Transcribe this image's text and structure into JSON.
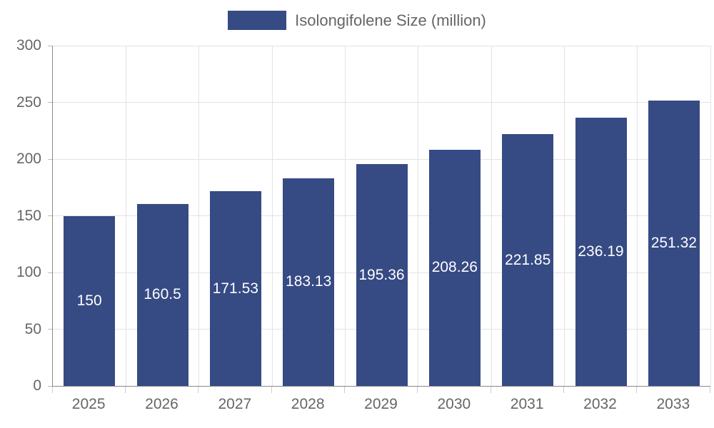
{
  "chart_data": {
    "type": "bar",
    "title": "Isolongifolene Size (million)",
    "legend": {
      "label": "Isolongifolene Size (million)",
      "position": "top-center"
    },
    "categories": [
      "2025",
      "2026",
      "2027",
      "2028",
      "2029",
      "2030",
      "2031",
      "2032",
      "2033"
    ],
    "values": [
      150,
      160.5,
      171.53,
      183.13,
      195.36,
      208.26,
      221.85,
      236.19,
      251.32
    ],
    "value_labels": [
      "150",
      "160.5",
      "171.53",
      "183.13",
      "195.36",
      "208.26",
      "221.85",
      "236.19",
      "251.32"
    ],
    "xlabel": "",
    "ylabel": "",
    "ylim": [
      0,
      300
    ],
    "yticks": [
      0,
      50,
      100,
      150,
      200,
      250,
      300
    ],
    "grid": true,
    "colors": {
      "bar": "#364a84",
      "axis_line": "#888888",
      "grid_line": "#e3e3e3",
      "tick_mark": "#bbbbbb",
      "tick_text": "#666666",
      "bar_label_text": "#ffffff"
    }
  }
}
